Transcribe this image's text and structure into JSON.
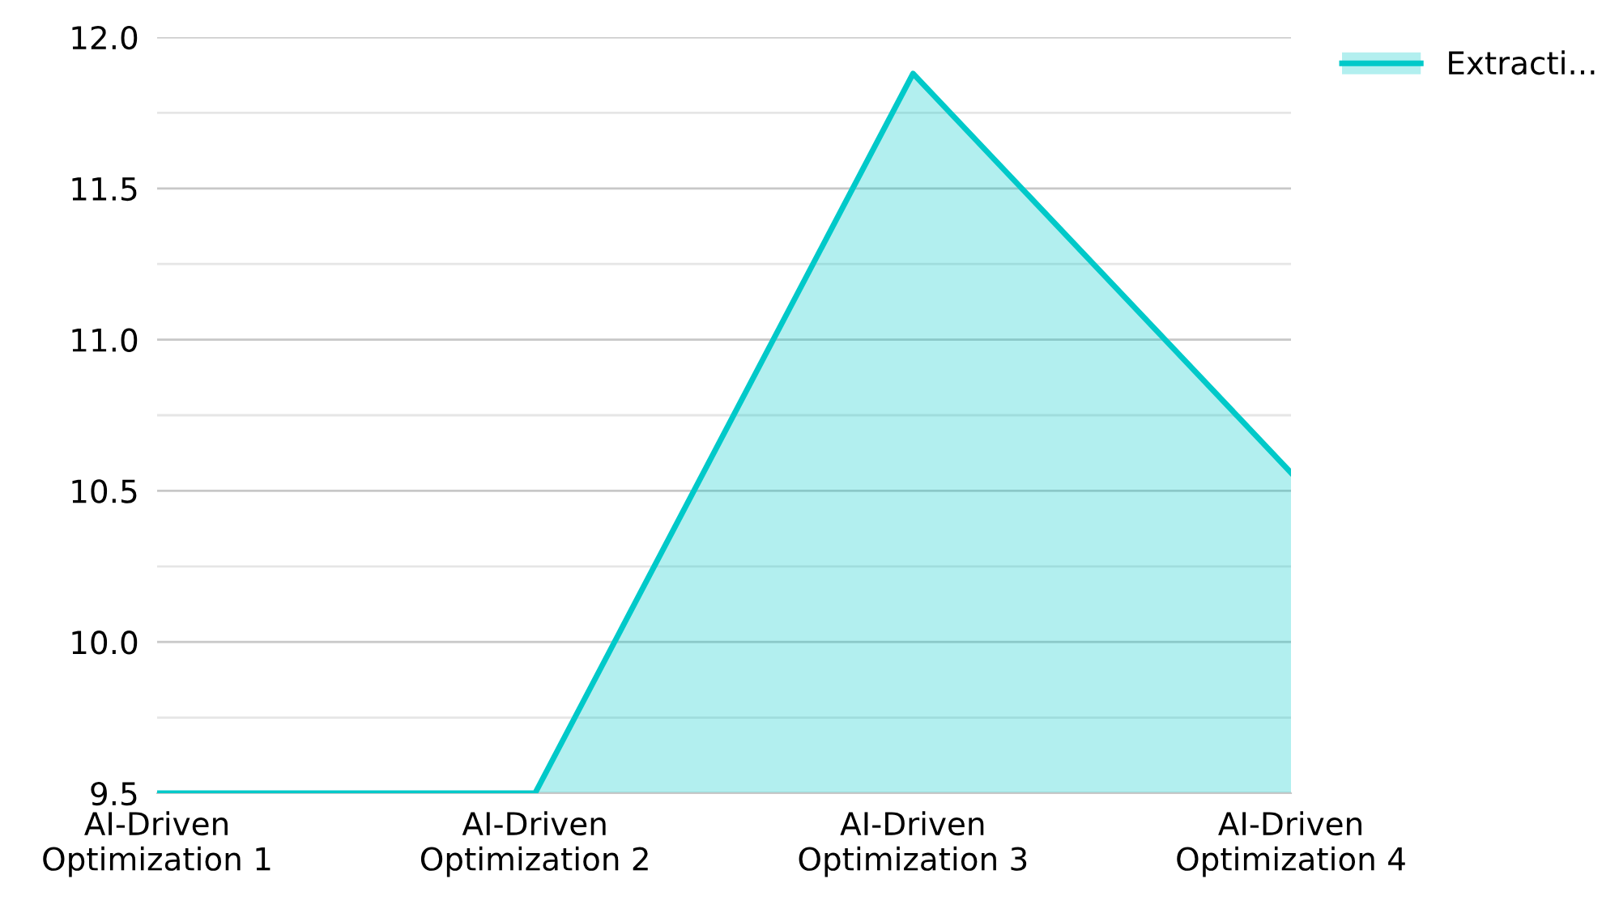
{
  "chart_data": {
    "type": "area",
    "categories": [
      "AI-Driven\nOptimization 1",
      "AI-Driven\nOptimization 2",
      "AI-Driven\nOptimization 3",
      "AI-Driven\nOptimization 4"
    ],
    "series": [
      {
        "name": "Extracti...",
        "color": "#00c9c9",
        "values": [
          9.5,
          9.5,
          11.88,
          10.56
        ]
      }
    ],
    "ylim": [
      9.5,
      12.0
    ],
    "yticks": [
      {
        "value": 9.5,
        "label": "9.5"
      },
      {
        "value": 9.75,
        "label": null
      },
      {
        "value": 10.0,
        "label": "10.0"
      },
      {
        "value": 10.25,
        "label": null
      },
      {
        "value": 10.5,
        "label": "10.5"
      },
      {
        "value": 10.75,
        "label": null
      },
      {
        "value": 11.0,
        "label": "11.0"
      },
      {
        "value": 11.25,
        "label": null
      },
      {
        "value": 11.5,
        "label": "11.5"
      },
      {
        "value": 11.75,
        "label": null
      },
      {
        "value": 12.0,
        "label": "12.0"
      }
    ],
    "grid": "y",
    "legend": "top right"
  }
}
